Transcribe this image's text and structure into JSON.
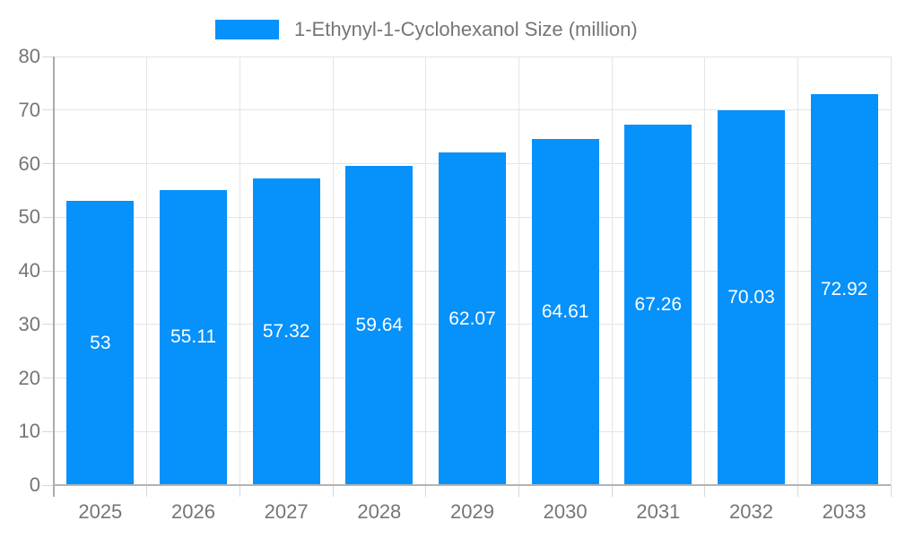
{
  "chart_data": {
    "type": "bar",
    "title": "1-Ethynyl-1-Cyclohexanol Size (million)",
    "legend": [
      "1-Ethynyl-1-Cyclohexanol Size (million)"
    ],
    "legend_position": "top",
    "categories": [
      "2025",
      "2026",
      "2027",
      "2028",
      "2029",
      "2030",
      "2031",
      "2032",
      "2033"
    ],
    "series": [
      {
        "name": "1-Ethynyl-1-Cyclohexanol Size (million)",
        "values": [
          53,
          55.11,
          57.32,
          59.64,
          62.07,
          64.61,
          67.26,
          70.03,
          72.92
        ]
      }
    ],
    "value_labels": [
      "53",
      "55.11",
      "57.32",
      "59.64",
      "62.07",
      "64.61",
      "67.26",
      "70.03",
      "72.92"
    ],
    "xlabel": "",
    "ylabel": "",
    "ylim": [
      0,
      80
    ],
    "yticks": [
      0,
      10,
      20,
      30,
      40,
      50,
      60,
      70,
      80
    ],
    "grid": true,
    "colors": {
      "bar": "#0691fb",
      "value_label": "#ffffff",
      "axis_text": "#757575",
      "gridline": "#e4e4e4",
      "tick": "#d8d8d8",
      "y_axis_line": "#ababab",
      "x_axis_line": "#b3b3b3",
      "background": "#ffffff"
    }
  }
}
